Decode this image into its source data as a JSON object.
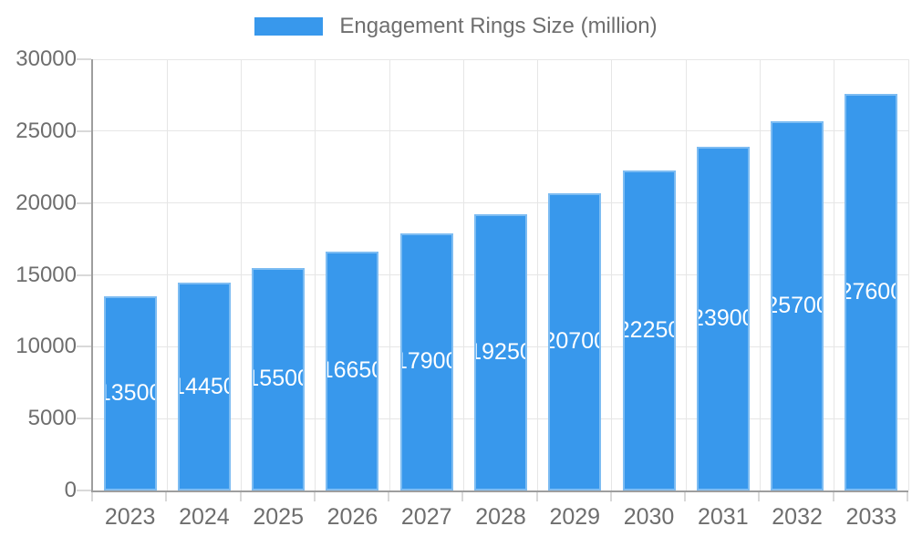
{
  "legend": {
    "series_label": "Engagement Rings Size (million)",
    "swatch_color": "#3898ec"
  },
  "chart_data": {
    "type": "bar",
    "title": "Engagement Rings Size (million)",
    "categories": [
      "2023",
      "2024",
      "2025",
      "2026",
      "2027",
      "2028",
      "2029",
      "2030",
      "2031",
      "2032",
      "2033"
    ],
    "values": [
      13500,
      14450,
      15500,
      16650,
      17900,
      19250,
      20700,
      22250,
      23900,
      25700,
      27600
    ],
    "series_name": "Engagement Rings Size (million)",
    "xlabel": "",
    "ylabel": "",
    "ylim": [
      0,
      30000
    ],
    "yticks": [
      0,
      5000,
      10000,
      15000,
      20000,
      25000,
      30000
    ],
    "grid": true,
    "legend_position": "top-center",
    "bar_color": "#3898ec",
    "bar_label_color": "#ffffff",
    "axis_line_color": "#9e9e9e",
    "gridline_color": "#e6e6e6",
    "tick_color": "#d9d9d9",
    "axis_text_color": "#6e6e6e"
  }
}
